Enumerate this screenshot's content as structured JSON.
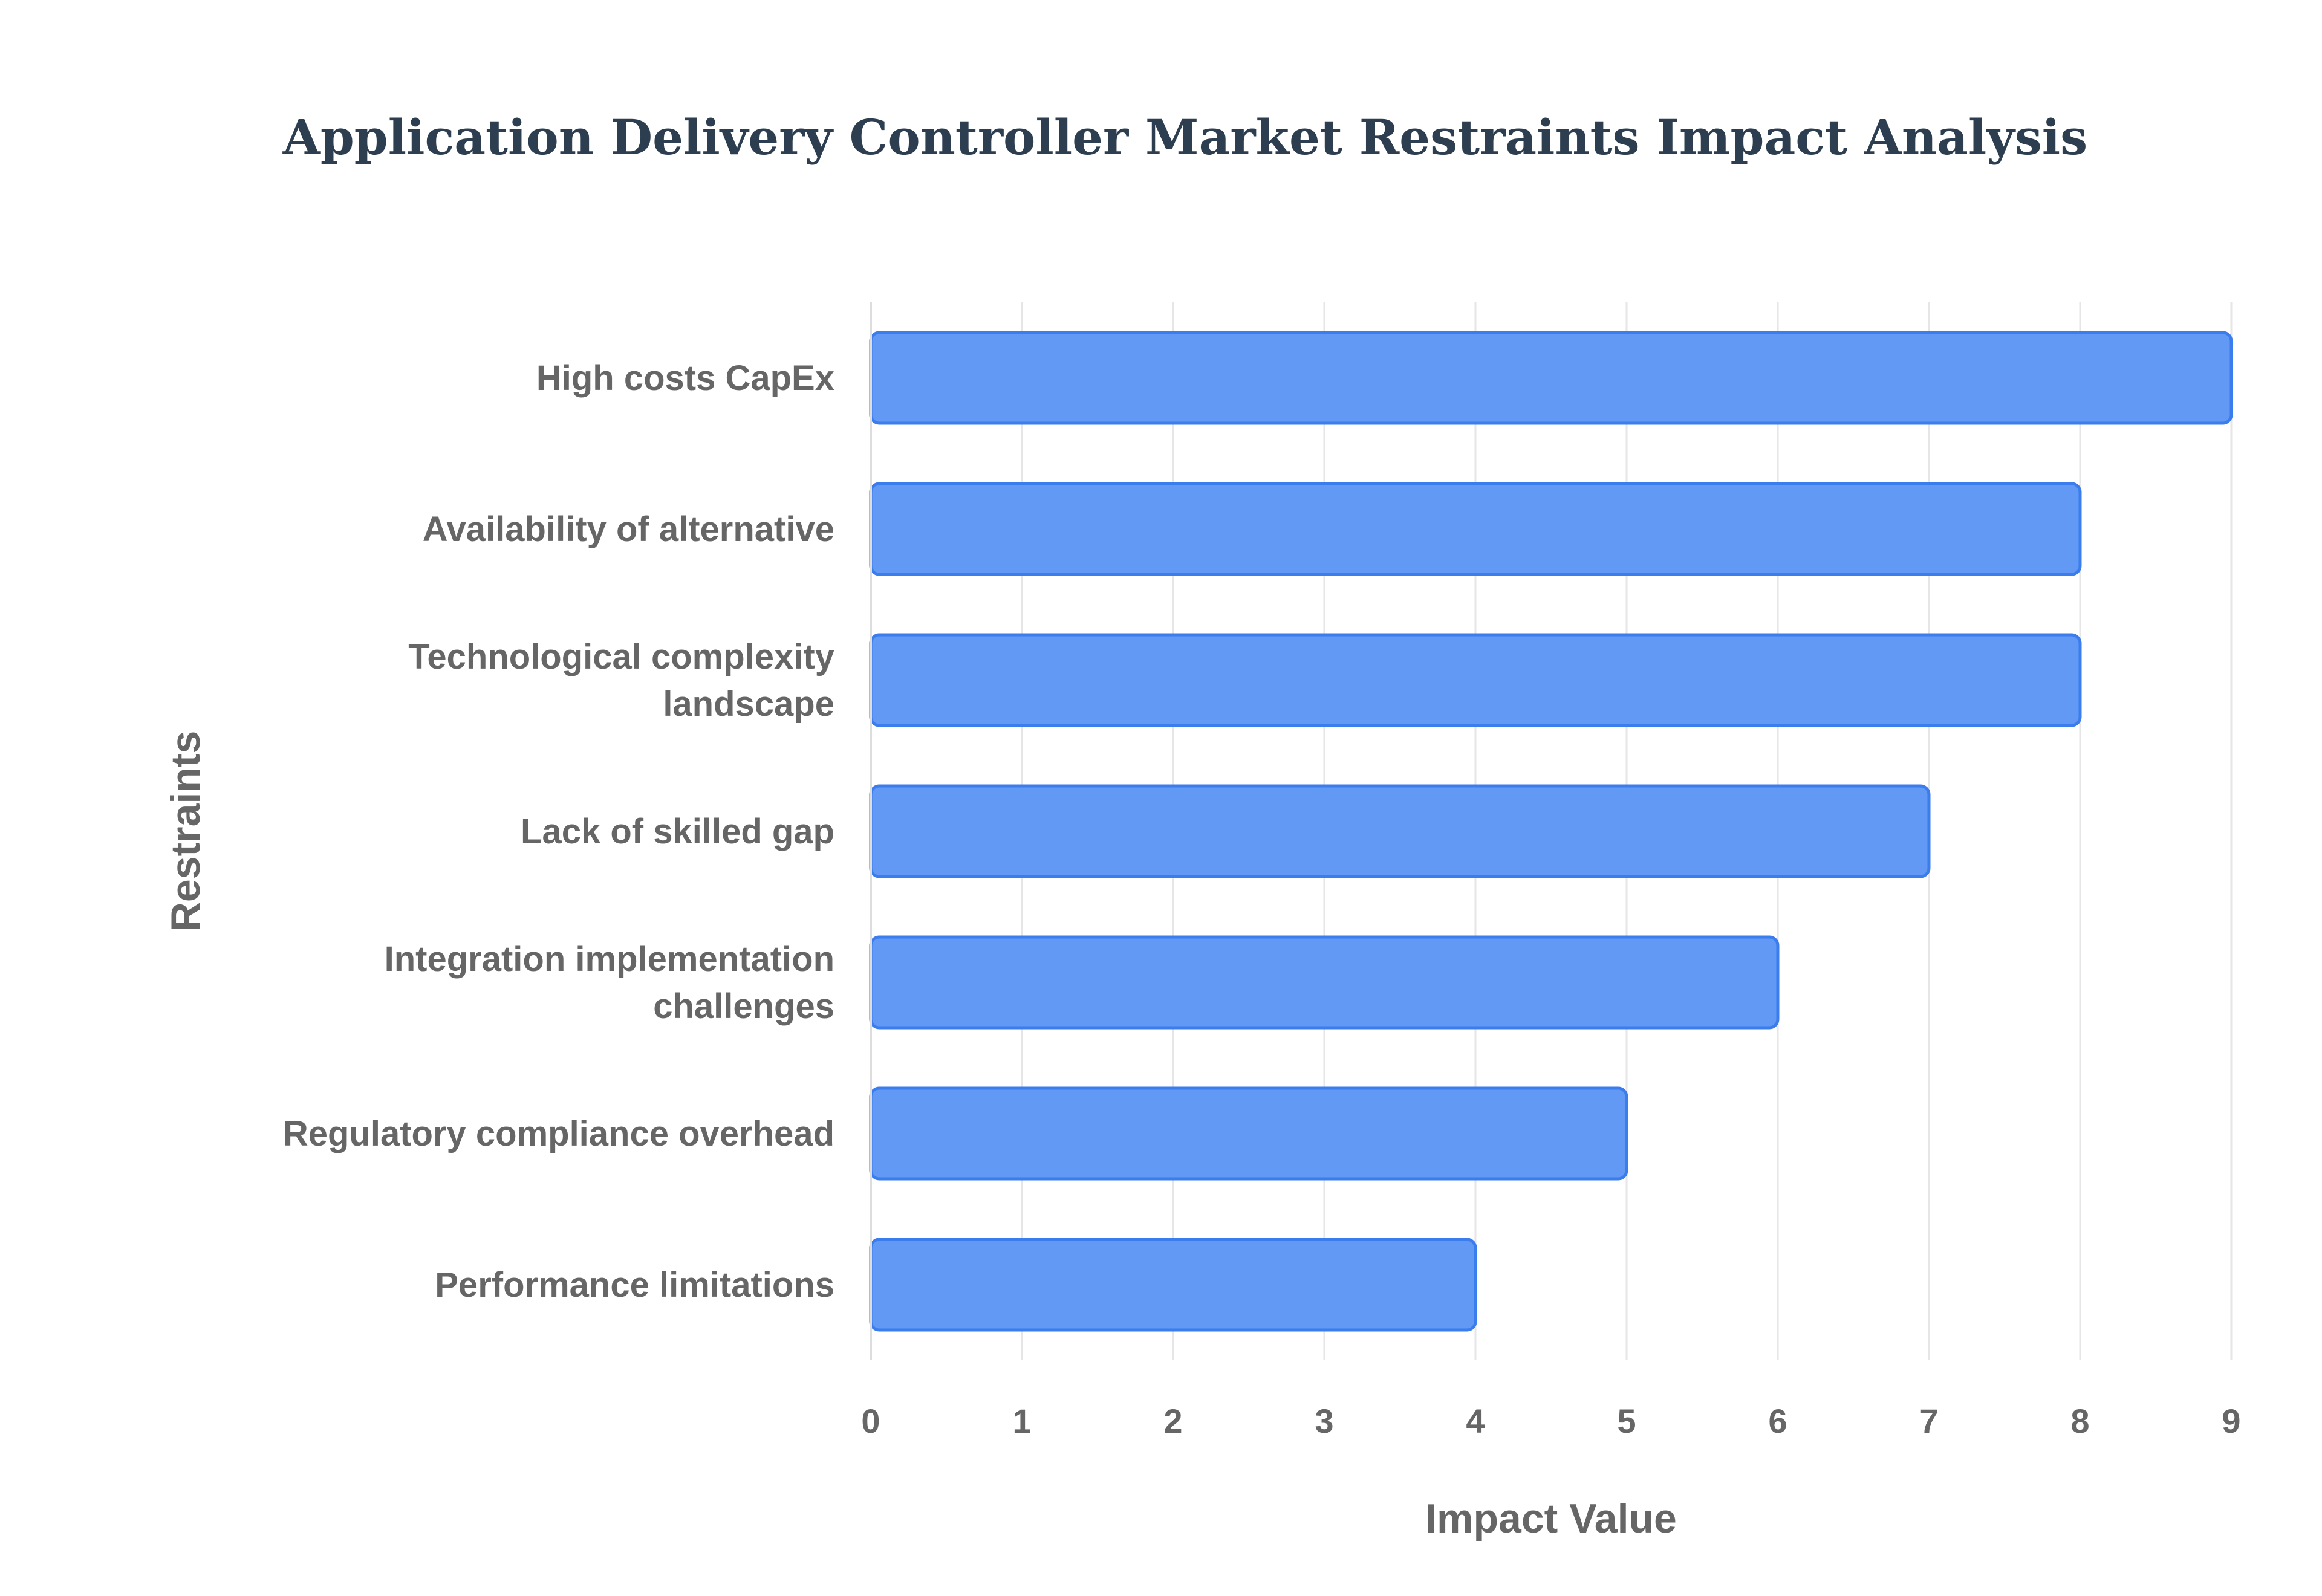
{
  "chart_data": {
    "type": "bar",
    "orientation": "horizontal",
    "title": "Application Delivery Controller Market Restraints Impact Analysis",
    "xlabel": "Impact Value",
    "ylabel": "Restraints",
    "categories": [
      "High costs CapEx",
      "Availability of alternative",
      "Technological complexity landscape",
      "Lack of skilled gap",
      "Integration implementation challenges",
      "Regulatory compliance overhead",
      "Performance limitations"
    ],
    "category_lines": [
      [
        "High costs CapEx"
      ],
      [
        "Availability of alternative"
      ],
      [
        "Technological complexity",
        "landscape"
      ],
      [
        "Lack of skilled gap"
      ],
      [
        "Integration implementation",
        "challenges"
      ],
      [
        "Regulatory compliance overhead"
      ],
      [
        "Performance limitations"
      ]
    ],
    "values": [
      9,
      8,
      8,
      7,
      6,
      5,
      4
    ],
    "xlim": [
      0,
      9
    ],
    "ticks": [
      "0",
      "1",
      "2",
      "3",
      "4",
      "5",
      "6",
      "7",
      "8",
      "9"
    ],
    "grid": true,
    "legend": "none",
    "colors": {
      "bar_fill": "#6199f5",
      "bar_border": "#3b7ded",
      "title": "#2c3e50",
      "label": "#666666"
    }
  }
}
